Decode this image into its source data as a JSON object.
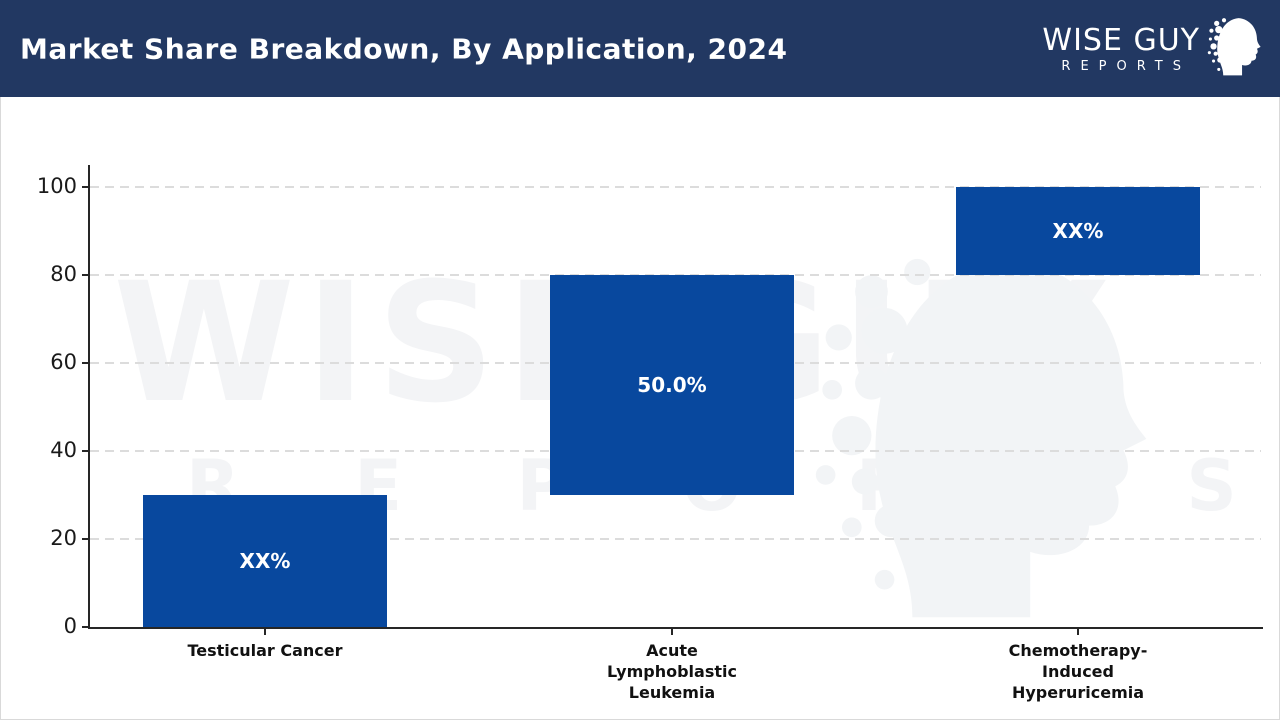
{
  "header": {
    "title": "Market Share Breakdown, By Application, 2024",
    "bg_color": "#223862",
    "logo": {
      "line1": "WISE GUY",
      "line2": "REPORTS"
    }
  },
  "watermark": {
    "line1": "WISE GUY",
    "line2": "R E P O R T S",
    "color": "#f3f4f6"
  },
  "chart_data": {
    "type": "bar",
    "subtype": "waterfall",
    "title": "Market Share Breakdown, By Application, 2024",
    "categories": [
      [
        "Testicular Cancer"
      ],
      [
        "Acute",
        "Lymphoblastic",
        "Leukemia"
      ],
      [
        "Chemotherapy-",
        "Induced",
        "Hyperuricemia"
      ]
    ],
    "bars": [
      {
        "category": "Testicular Cancer",
        "start": 0,
        "end": 30,
        "value_label": "XX%"
      },
      {
        "category": "Acute Lymphoblastic Leukemia",
        "start": 30,
        "end": 80,
        "value_label": "50.0%"
      },
      {
        "category": "Chemotherapy-Induced Hyperuricemia",
        "start": 80,
        "end": 100,
        "value_label": "XX%"
      }
    ],
    "y_ticks": [
      0,
      20,
      40,
      60,
      80,
      100
    ],
    "ylim": [
      0,
      100
    ],
    "bar_color": "#08489e",
    "axis_color": "#262626",
    "grid_color": "#dcdcdc",
    "grid": "horizontal-dashed",
    "legend": "none"
  }
}
